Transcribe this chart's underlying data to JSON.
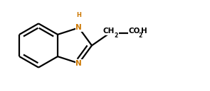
{
  "bg_color": "#ffffff",
  "bond_color": "#000000",
  "N_color": "#cc7700",
  "text_color": "#000000",
  "lw": 1.6,
  "fs_main": 7.5,
  "fs_sub": 5.5,
  "figsize": [
    2.95,
    1.29
  ],
  "dpi": 100,
  "xlim": [
    -1.05,
    2.85
  ],
  "ylim": [
    -0.85,
    0.85
  ]
}
